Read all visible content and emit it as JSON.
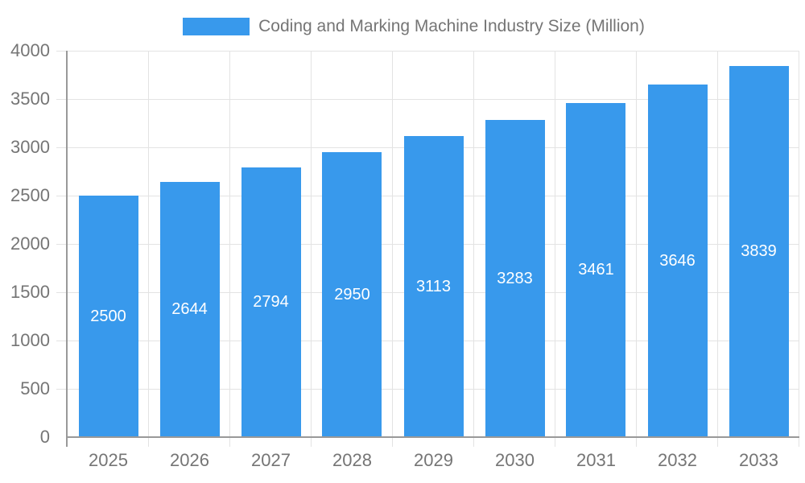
{
  "chart_data": {
    "type": "bar",
    "title": "Coding and Marking Machine Industry Size (Million)",
    "categories": [
      "2025",
      "2026",
      "2027",
      "2028",
      "2029",
      "2030",
      "2031",
      "2032",
      "2033"
    ],
    "values": [
      2500,
      2644,
      2794,
      2950,
      3113,
      3283,
      3461,
      3646,
      3839
    ],
    "bar_labels": [
      "2500",
      "2644",
      "2794",
      "2950",
      "3113",
      "3283",
      "3461",
      "3646",
      "3839"
    ],
    "xlabel": "",
    "ylabel": "",
    "ylim": [
      0,
      4000
    ],
    "yticks": [
      0,
      500,
      1000,
      1500,
      2000,
      2500,
      3000,
      3500,
      4000
    ],
    "grid": true,
    "legend_position": "top"
  },
  "colors": {
    "bar": "#3899EC",
    "bar_value_text": "#ffffff",
    "axis_text": "#757575",
    "grid_line": "#e3e3e3",
    "axis_line": "#999999",
    "background": "#ffffff"
  }
}
